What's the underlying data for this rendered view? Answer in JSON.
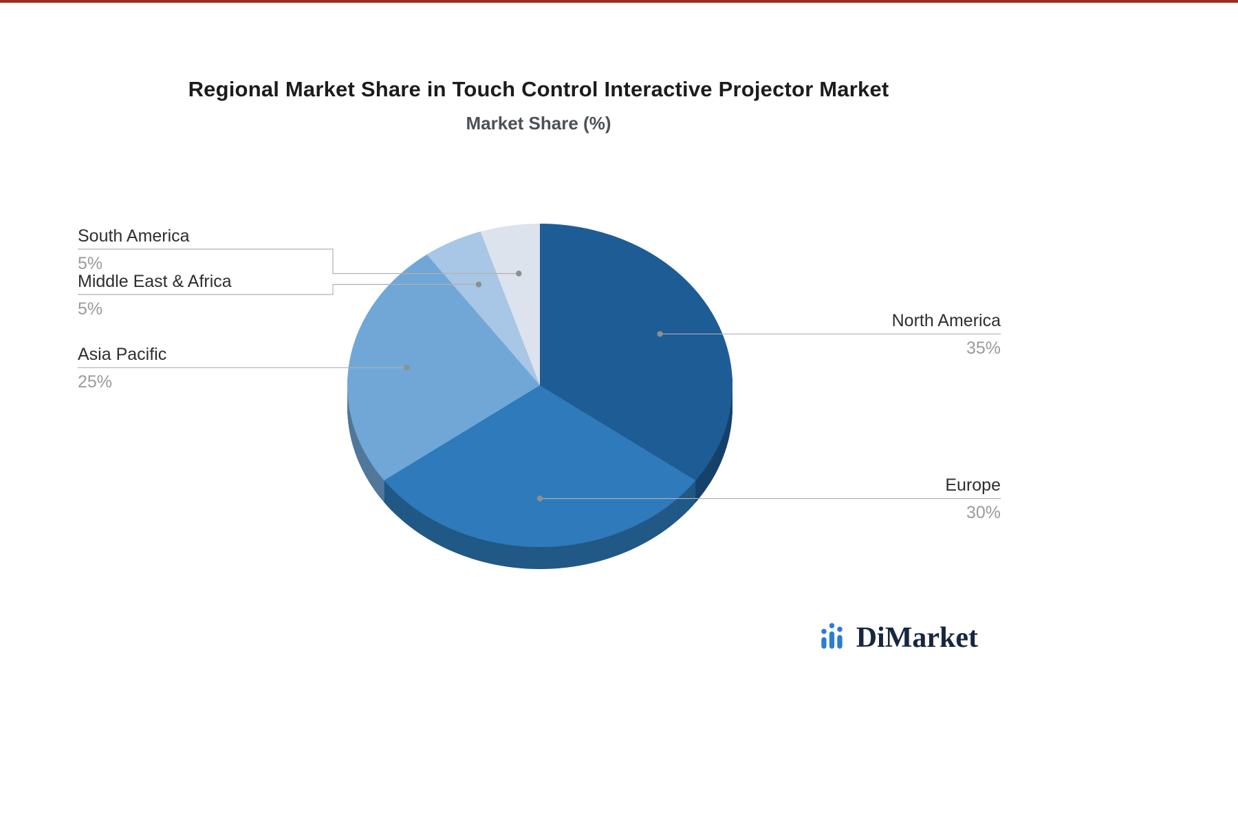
{
  "page": {
    "accent_bar_color": "#9e2b22",
    "background": "#ffffff"
  },
  "chart_data": {
    "type": "pie",
    "title": "Regional Market Share in Touch Control Interactive Projector Market",
    "subtitle": "Market Share (%)",
    "unit": "%",
    "direction": "clockwise",
    "start_angle_deg": 0,
    "depth3d": true,
    "legend_position": "callout-labels",
    "slices": [
      {
        "label": "North America",
        "value": 35,
        "display": "35%",
        "color": "#1E5C96"
      },
      {
        "label": "Europe",
        "value": 30,
        "display": "30%",
        "color": "#2E7ABA"
      },
      {
        "label": "Asia Pacific",
        "value": 25,
        "display": "25%",
        "color": "#70A7D7"
      },
      {
        "label": "Middle East & Africa",
        "value": 5,
        "display": "5%",
        "color": "#A8C6E6"
      },
      {
        "label": "South America",
        "value": 5,
        "display": "5%",
        "color": "#DCE3ED"
      }
    ],
    "label_text_color": "#2e2e2e",
    "value_text_color": "#9a9a9a",
    "leader_line_color": "#b0b0b0"
  },
  "logo": {
    "text": "DiMarket",
    "icon": "bar-chart-icon",
    "text_color": "#182740",
    "accent": "#2d7cd4"
  }
}
